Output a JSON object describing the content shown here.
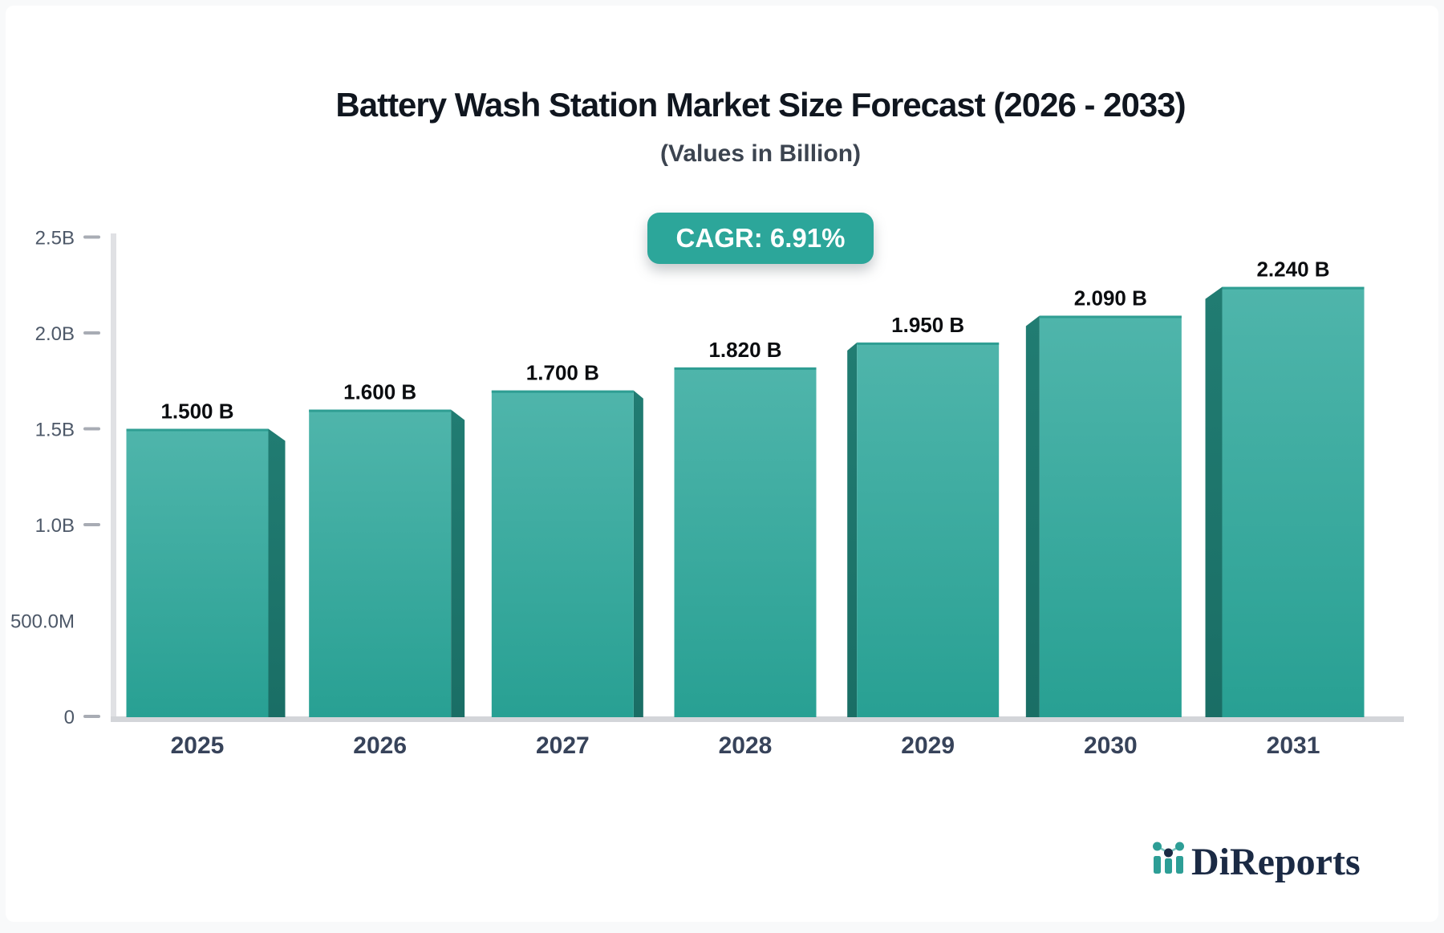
{
  "chart_data": {
    "type": "bar",
    "title": "Battery Wash Station Market Size Forecast (2026 - 2033)",
    "subtitle": "(Values in Billion)",
    "cagr_label": "CAGR: 6.91%",
    "categories": [
      "2025",
      "2026",
      "2027",
      "2028",
      "2029",
      "2030",
      "2031"
    ],
    "values": [
      1.5,
      1.6,
      1.7,
      1.82,
      1.95,
      2.09,
      2.24
    ],
    "value_labels": [
      "1.500 B",
      "1.600 B",
      "1.700 B",
      "1.820 B",
      "1.950 B",
      "2.090 B",
      "2.240 B"
    ],
    "unit": "B",
    "y_ticks": [
      {
        "label": "0",
        "value": 0,
        "dash": true
      },
      {
        "label": "500.0M",
        "value": 0.5,
        "dash": false
      },
      {
        "label": "1.0B",
        "value": 1.0,
        "dash": true
      },
      {
        "label": "1.5B",
        "value": 1.5,
        "dash": true
      },
      {
        "label": "2.0B",
        "value": 2.0,
        "dash": true
      },
      {
        "label": "2.5B",
        "value": 2.5,
        "dash": true
      }
    ],
    "ylim": [
      0,
      2.5
    ],
    "grid": false,
    "legend": "none",
    "colors": {
      "bar_face_top": "#4fb5ab",
      "bar_face_bottom": "#28a093",
      "bar_face_edge": "#2f9e93",
      "bar_side_top": "#217c72",
      "bar_side_bottom": "#1a6e65",
      "badge_background": "#2ca69a",
      "axis_line": "#d3d5d9",
      "tick_dash": "#a8acb4"
    }
  },
  "footer": {
    "brand": "DiReports"
  }
}
